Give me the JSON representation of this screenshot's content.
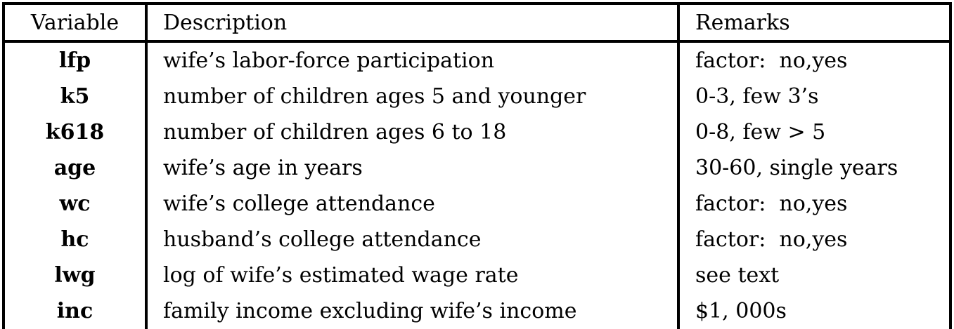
{
  "table": {
    "title": "variable-description-table",
    "columns": [
      {
        "key": "variable",
        "label": "Variable"
      },
      {
        "key": "description",
        "label": "Description"
      },
      {
        "key": "remarks",
        "label": "Remarks"
      }
    ],
    "rows": [
      {
        "variable": "lfp",
        "description": "wife’s labor-force participation",
        "remarks": "factor:  no,yes"
      },
      {
        "variable": "k5",
        "description": "number of children ages 5 and younger",
        "remarks": "0-3, few 3’s"
      },
      {
        "variable": "k618",
        "description": "number of children ages 6 to 18",
        "remarks": "0-8, few > 5"
      },
      {
        "variable": "age",
        "description": "wife’s age in years",
        "remarks": "30-60, single years"
      },
      {
        "variable": "wc",
        "description": "wife’s college attendance",
        "remarks": "factor:  no,yes"
      },
      {
        "variable": "hc",
        "description": "husband’s college attendance",
        "remarks": "factor:  no,yes"
      },
      {
        "variable": "lwg",
        "description": "log of wife’s estimated wage rate",
        "remarks": "see text"
      },
      {
        "variable": "inc",
        "description": "family income excluding wife’s income",
        "remarks": "$1, 000s"
      }
    ],
    "colors": {
      "text": "#000000",
      "border": "#000000",
      "background": "#ffffff"
    }
  }
}
